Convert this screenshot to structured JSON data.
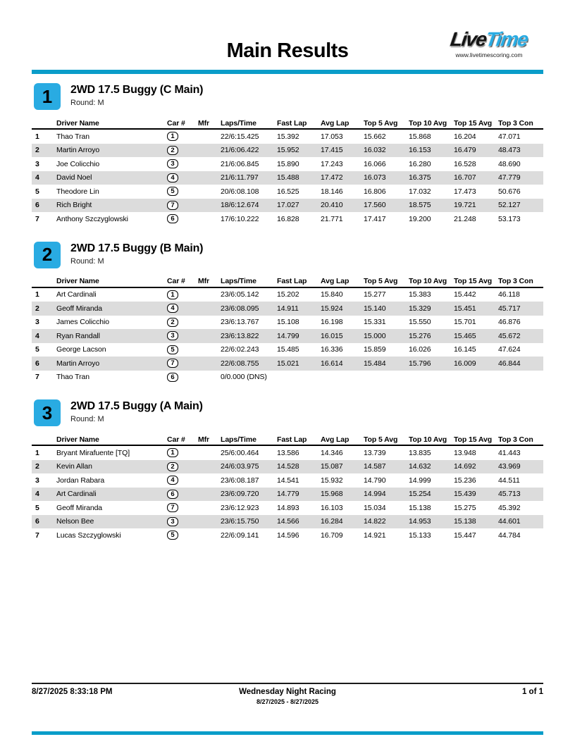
{
  "header": {
    "title": "Main Results",
    "logo_live": "Live",
    "logo_time": "Time",
    "logo_url": "www.livetimescoring.com"
  },
  "columns": [
    "Driver Name",
    "Car #",
    "Mfr",
    "Laps/Time",
    "Fast Lap",
    "Avg Lap",
    "Top 5 Avg",
    "Top 10 Avg",
    "Top 15 Avg",
    "Top 3 Con"
  ],
  "sections": [
    {
      "number": "1",
      "title": "2WD 17.5 Buggy (C Main)",
      "round": "Round: M",
      "rows": [
        {
          "pos": "1",
          "driver": "Thao Tran",
          "car": "1",
          "mfr": "",
          "laps_time": "22/6:15.425",
          "fast_lap": "15.392",
          "avg_lap": "17.053",
          "top5": "15.662",
          "top10": "15.868",
          "top15": "16.204",
          "top3con": "47.071"
        },
        {
          "pos": "2",
          "driver": "Martin Arroyo",
          "car": "2",
          "mfr": "",
          "laps_time": "21/6:06.422",
          "fast_lap": "15.952",
          "avg_lap": "17.415",
          "top5": "16.032",
          "top10": "16.153",
          "top15": "16.479",
          "top3con": "48.473"
        },
        {
          "pos": "3",
          "driver": "Joe Colicchio",
          "car": "3",
          "mfr": "",
          "laps_time": "21/6:06.845",
          "fast_lap": "15.890",
          "avg_lap": "17.243",
          "top5": "16.066",
          "top10": "16.280",
          "top15": "16.528",
          "top3con": "48.690"
        },
        {
          "pos": "4",
          "driver": "David Noel",
          "car": "4",
          "mfr": "",
          "laps_time": "21/6:11.797",
          "fast_lap": "15.488",
          "avg_lap": "17.472",
          "top5": "16.073",
          "top10": "16.375",
          "top15": "16.707",
          "top3con": "47.779"
        },
        {
          "pos": "5",
          "driver": "Theodore Lin",
          "car": "5",
          "mfr": "",
          "laps_time": "20/6:08.108",
          "fast_lap": "16.525",
          "avg_lap": "18.146",
          "top5": "16.806",
          "top10": "17.032",
          "top15": "17.473",
          "top3con": "50.676"
        },
        {
          "pos": "6",
          "driver": "Rich Bright",
          "car": "7",
          "mfr": "",
          "laps_time": "18/6:12.674",
          "fast_lap": "17.027",
          "avg_lap": "20.410",
          "top5": "17.560",
          "top10": "18.575",
          "top15": "19.721",
          "top3con": "52.127"
        },
        {
          "pos": "7",
          "driver": "Anthony Szczyglowski",
          "car": "6",
          "mfr": "",
          "laps_time": "17/6:10.222",
          "fast_lap": "16.828",
          "avg_lap": "21.771",
          "top5": "17.417",
          "top10": "19.200",
          "top15": "21.248",
          "top3con": "53.173"
        }
      ]
    },
    {
      "number": "2",
      "title": "2WD 17.5 Buggy (B Main)",
      "round": "Round: M",
      "rows": [
        {
          "pos": "1",
          "driver": "Art Cardinali",
          "car": "1",
          "mfr": "",
          "laps_time": "23/6:05.142",
          "fast_lap": "15.202",
          "avg_lap": "15.840",
          "top5": "15.277",
          "top10": "15.383",
          "top15": "15.442",
          "top3con": "46.118"
        },
        {
          "pos": "2",
          "driver": "Geoff Miranda",
          "car": "4",
          "mfr": "",
          "laps_time": "23/6:08.095",
          "fast_lap": "14.911",
          "avg_lap": "15.924",
          "top5": "15.140",
          "top10": "15.329",
          "top15": "15.451",
          "top3con": "45.717"
        },
        {
          "pos": "3",
          "driver": "James Colicchio",
          "car": "2",
          "mfr": "",
          "laps_time": "23/6:13.767",
          "fast_lap": "15.108",
          "avg_lap": "16.198",
          "top5": "15.331",
          "top10": "15.550",
          "top15": "15.701",
          "top3con": "46.876"
        },
        {
          "pos": "4",
          "driver": "Ryan Randall",
          "car": "3",
          "mfr": "",
          "laps_time": "23/6:13.822",
          "fast_lap": "14.799",
          "avg_lap": "16.015",
          "top5": "15.000",
          "top10": "15.276",
          "top15": "15.465",
          "top3con": "45.672"
        },
        {
          "pos": "5",
          "driver": "George Lacson",
          "car": "5",
          "mfr": "",
          "laps_time": "22/6:02.243",
          "fast_lap": "15.485",
          "avg_lap": "16.336",
          "top5": "15.859",
          "top10": "16.026",
          "top15": "16.145",
          "top3con": "47.624"
        },
        {
          "pos": "6",
          "driver": "Martin Arroyo",
          "car": "7",
          "mfr": "",
          "laps_time": "22/6:08.755",
          "fast_lap": "15.021",
          "avg_lap": "16.614",
          "top5": "15.484",
          "top10": "15.796",
          "top15": "16.009",
          "top3con": "46.844"
        },
        {
          "pos": "7",
          "driver": "Thao Tran",
          "car": "6",
          "mfr": "",
          "laps_time": "0/0.000 (DNS)",
          "fast_lap": "",
          "avg_lap": "",
          "top5": "",
          "top10": "",
          "top15": "",
          "top3con": ""
        }
      ]
    },
    {
      "number": "3",
      "title": "2WD 17.5 Buggy (A Main)",
      "round": "Round: M",
      "rows": [
        {
          "pos": "1",
          "driver": "Bryant Mirafuente [TQ]",
          "car": "1",
          "mfr": "",
          "laps_time": "25/6:00.464",
          "fast_lap": "13.586",
          "avg_lap": "14.346",
          "top5": "13.739",
          "top10": "13.835",
          "top15": "13.948",
          "top3con": "41.443"
        },
        {
          "pos": "2",
          "driver": "Kevin Allan",
          "car": "2",
          "mfr": "",
          "laps_time": "24/6:03.975",
          "fast_lap": "14.528",
          "avg_lap": "15.087",
          "top5": "14.587",
          "top10": "14.632",
          "top15": "14.692",
          "top3con": "43.969"
        },
        {
          "pos": "3",
          "driver": "Jordan Rabara",
          "car": "4",
          "mfr": "",
          "laps_time": "23/6:08.187",
          "fast_lap": "14.541",
          "avg_lap": "15.932",
          "top5": "14.790",
          "top10": "14.999",
          "top15": "15.236",
          "top3con": "44.511"
        },
        {
          "pos": "4",
          "driver": "Art Cardinali",
          "car": "6",
          "mfr": "",
          "laps_time": "23/6:09.720",
          "fast_lap": "14.779",
          "avg_lap": "15.968",
          "top5": "14.994",
          "top10": "15.254",
          "top15": "15.439",
          "top3con": "45.713"
        },
        {
          "pos": "5",
          "driver": "Geoff Miranda",
          "car": "7",
          "mfr": "",
          "laps_time": "23/6:12.923",
          "fast_lap": "14.893",
          "avg_lap": "16.103",
          "top5": "15.034",
          "top10": "15.138",
          "top15": "15.275",
          "top3con": "45.392"
        },
        {
          "pos": "6",
          "driver": "Nelson Bee",
          "car": "3",
          "mfr": "",
          "laps_time": "23/6:15.750",
          "fast_lap": "14.566",
          "avg_lap": "16.284",
          "top5": "14.822",
          "top10": "14.953",
          "top15": "15.138",
          "top3con": "44.601"
        },
        {
          "pos": "7",
          "driver": "Lucas Szczyglowski",
          "car": "5",
          "mfr": "",
          "laps_time": "22/6:09.141",
          "fast_lap": "14.596",
          "avg_lap": "16.709",
          "top5": "14.921",
          "top10": "15.133",
          "top15": "15.447",
          "top3con": "44.784"
        }
      ]
    }
  ],
  "footer": {
    "printed": "8/27/2025 8:33:18 PM",
    "event": "Wednesday Night Racing",
    "dates": "8/27/2025 - 8/27/2025",
    "page": "1 of 1"
  },
  "colors": {
    "accent_bar": "#0A9DC9",
    "section_box": "#29ABE2",
    "row_alt": "#DCDCDC"
  }
}
